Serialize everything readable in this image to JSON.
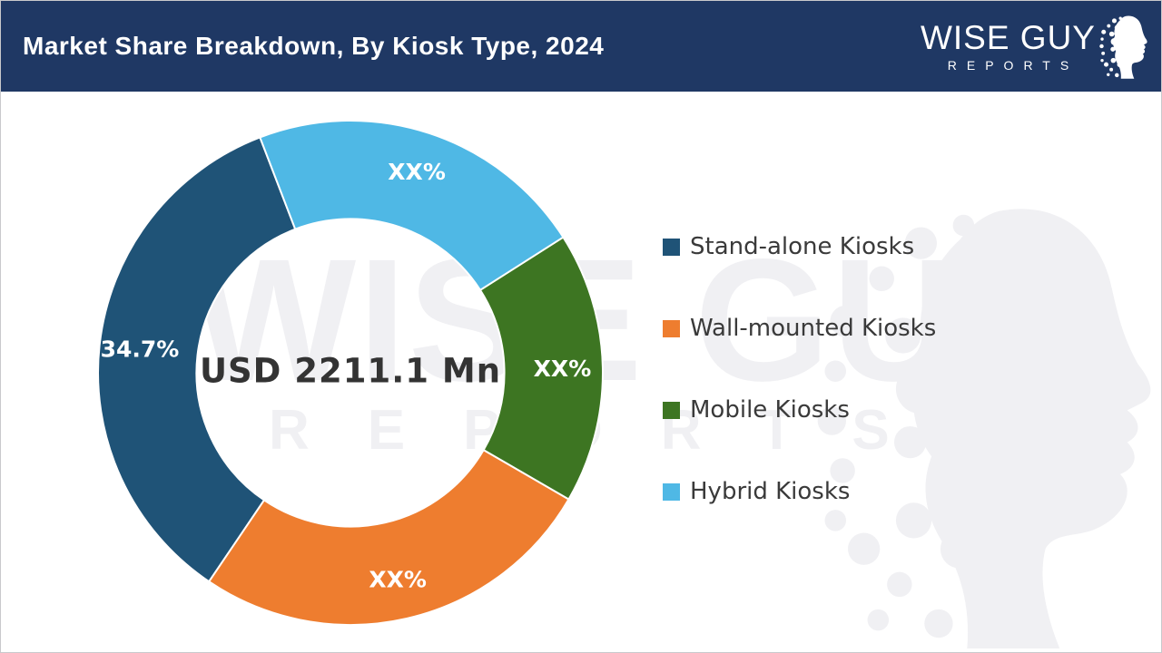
{
  "header": {
    "title": "Market Share Breakdown, By Kiosk Type, 2024",
    "background_color": "#1F3864",
    "logo": {
      "line1": "WISE GUY",
      "line2": "REPORTS"
    }
  },
  "watermark": {
    "line1": "WISE GUY",
    "line2": "REPORTS",
    "color": "#F0F0F3"
  },
  "chart_data": {
    "type": "pie",
    "subtype": "donut",
    "title": "Market Share Breakdown, By Kiosk Type, 2024",
    "center_label": "USD 2211.1 Mn",
    "start_angle_deg": 111,
    "direction": "counterclockwise",
    "donut_inner_ratio": 0.61,
    "legend_position": "right",
    "center": {
      "x": 385,
      "y": 410,
      "outer_radius": 278
    },
    "label_radius_ratio": 0.84,
    "series": [
      {
        "label": "Stand-alone Kiosks",
        "value_pct": 34.7,
        "display_label": "34.7%",
        "color": "#1F5377"
      },
      {
        "label": "Wall-mounted Kiosks",
        "value_pct": 26.1,
        "display_label": "XX%",
        "color": "#EE7D2F"
      },
      {
        "label": "Mobile Kiosks",
        "value_pct": 17.4,
        "display_label": "XX%",
        "color": "#3D7522"
      },
      {
        "label": "Hybrid Kiosks",
        "value_pct": 21.8,
        "display_label": "XX%",
        "color": "#4FB8E5"
      }
    ]
  }
}
